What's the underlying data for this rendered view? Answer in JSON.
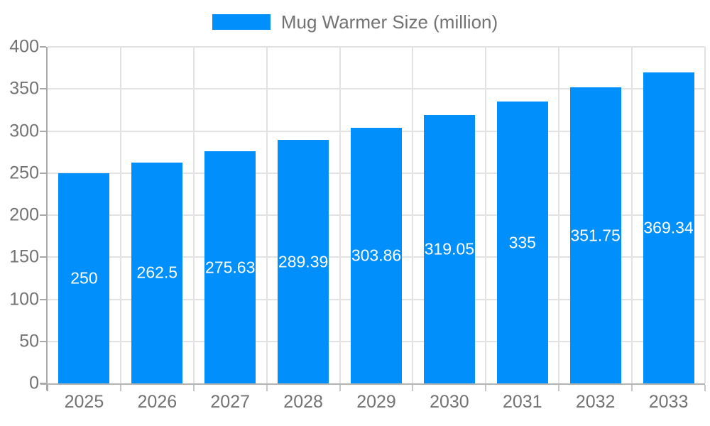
{
  "legend": {
    "label": "Mug Warmer Size (million)"
  },
  "chart_data": {
    "type": "bar",
    "title": "Mug Warmer Size (million)",
    "xlabel": "",
    "ylabel": "",
    "categories": [
      "2025",
      "2026",
      "2027",
      "2028",
      "2029",
      "2030",
      "2031",
      "2032",
      "2033"
    ],
    "values": [
      250,
      262.5,
      275.63,
      289.39,
      303.86,
      319.05,
      335,
      351.75,
      369.34
    ],
    "value_labels": [
      "250",
      "262.5",
      "275.63",
      "289.39",
      "303.86",
      "319.05",
      "335",
      "351.75",
      "369.34"
    ],
    "ylim": [
      0,
      400
    ],
    "ytick_step": 50,
    "ytick_labels": [
      "0",
      "50",
      "100",
      "150",
      "200",
      "250",
      "300",
      "350",
      "400"
    ],
    "grid": "on",
    "legend_position": "top",
    "colors": {
      "bar": "#008FFB",
      "grid": "#e2e2e2",
      "axis": "#a9a9a9",
      "tick": "#c6c6c6",
      "axis_label": "#737373",
      "value_label": "#ffffff",
      "background": "#ffffff"
    }
  }
}
